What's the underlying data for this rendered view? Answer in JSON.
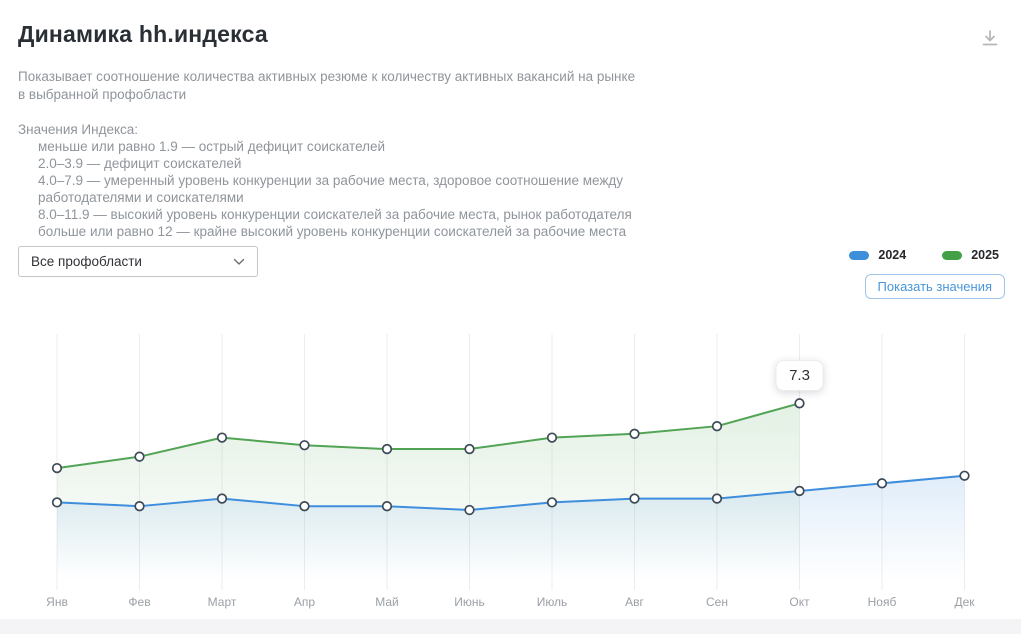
{
  "header": {
    "title": "Динамика hh.индекса"
  },
  "description": {
    "line1": "Показывает соотношение количества активных резюме к количеству активных вакансий на рынке",
    "line2": "в выбранной профобласти"
  },
  "index_values": {
    "heading": "Значения Индекса:",
    "lines": [
      "меньше или равно 1.9 — острый дефицит соискателей",
      "2.0–3.9 — дефицит соискателей",
      "4.0–7.9 — умеренный уровень конкуренции за рабочие места, здоровое соотношение между",
      "работодателями и соискателями",
      "8.0–11.9 — высокий уровень конкуренции соискателей за рабочие места, рынок работодателя",
      "больше или равно 12 — крайне высокий уровень конкуренции соискателей за рабочие места"
    ]
  },
  "controls": {
    "profession_select": {
      "value": "Все профобласти"
    },
    "legend": [
      {
        "label": "2024",
        "color": "#3d8fd9"
      },
      {
        "label": "2025",
        "color": "#43a047"
      }
    ],
    "show_values_button": "Показать значения"
  },
  "chart_data": {
    "type": "line",
    "title": "Динамика hh.индекса",
    "categories": [
      "Янв",
      "Фев",
      "Март",
      "Апр",
      "Май",
      "Июнь",
      "Июль",
      "Авг",
      "Сен",
      "Окт",
      "Нояб",
      "Дек"
    ],
    "series": [
      {
        "name": "2024",
        "color": "#3e8edd",
        "values": [
          4.7,
          4.6,
          4.8,
          4.6,
          4.6,
          4.5,
          4.7,
          4.8,
          4.8,
          5.0,
          5.2,
          5.4
        ]
      },
      {
        "name": "2025",
        "color": "#52a455",
        "values": [
          5.6,
          5.9,
          6.4,
          6.2,
          6.1,
          6.1,
          6.4,
          6.5,
          6.7,
          7.3
        ]
      }
    ],
    "marker": {
      "fill": "#ffffff",
      "stroke": "#3d4a57"
    },
    "tooltip": {
      "series": "2025",
      "category": "Окт",
      "value": "7.3"
    },
    "ylim": [
      2.4,
      9.12
    ],
    "grid": "vertical-only",
    "xlabel": "",
    "ylabel": "",
    "legend_position": "top-right"
  }
}
